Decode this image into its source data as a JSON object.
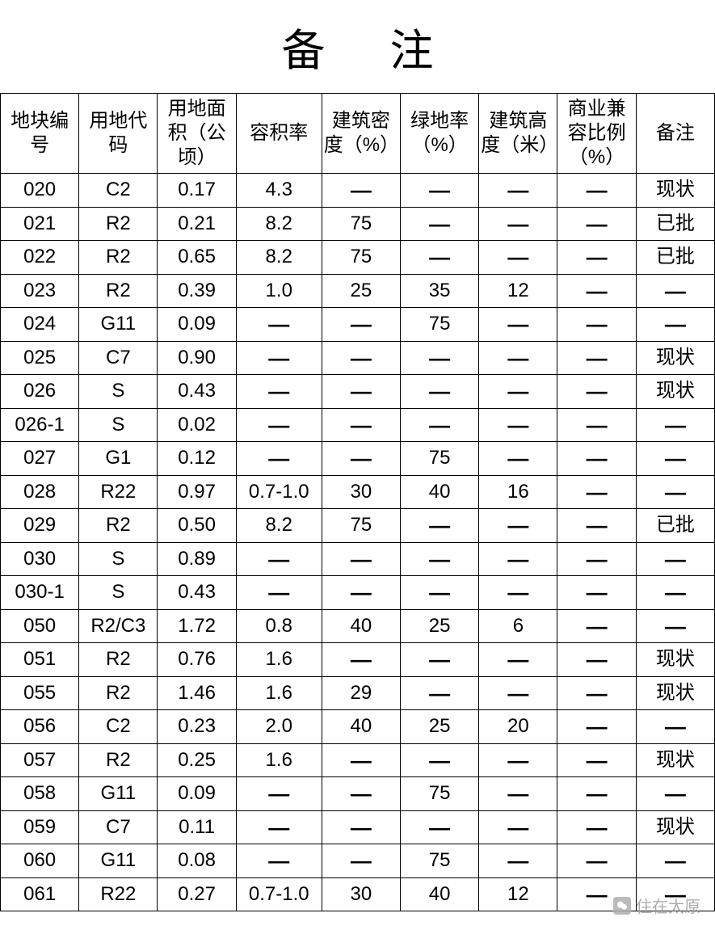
{
  "title": "备注",
  "table": {
    "type": "table",
    "dash": "—",
    "border_color": "#000000",
    "background_color": "#ffffff",
    "text_color": "#000000",
    "header_fontsize": 24,
    "cell_fontsize": 24,
    "title_fontsize": 54,
    "columns": [
      {
        "label": "地块编号",
        "width_pct": 11
      },
      {
        "label": "用地代码",
        "width_pct": 11
      },
      {
        "label": "用地面积（公顷）",
        "width_pct": 11
      },
      {
        "label": "容积率",
        "width_pct": 12
      },
      {
        "label": "建筑密度（%）",
        "width_pct": 11
      },
      {
        "label": "绿地率（%）",
        "width_pct": 11
      },
      {
        "label": "建筑高度（米）",
        "width_pct": 11
      },
      {
        "label": "商业兼容比例（%）",
        "width_pct": 11
      },
      {
        "label": "备注",
        "width_pct": 11
      }
    ],
    "rows": [
      [
        "020",
        "C2",
        "0.17",
        "4.3",
        "—",
        "—",
        "—",
        "—",
        "现状"
      ],
      [
        "021",
        "R2",
        "0.21",
        "8.2",
        "75",
        "—",
        "—",
        "—",
        "已批"
      ],
      [
        "022",
        "R2",
        "0.65",
        "8.2",
        "75",
        "—",
        "—",
        "—",
        "已批"
      ],
      [
        "023",
        "R2",
        "0.39",
        "1.0",
        "25",
        "35",
        "12",
        "—",
        "—"
      ],
      [
        "024",
        "G11",
        "0.09",
        "—",
        "—",
        "75",
        "—",
        "—",
        "—"
      ],
      [
        "025",
        "C7",
        "0.90",
        "—",
        "—",
        "—",
        "—",
        "—",
        "现状"
      ],
      [
        "026",
        "S",
        "0.43",
        "—",
        "—",
        "—",
        "—",
        "—",
        "现状"
      ],
      [
        "026-1",
        "S",
        "0.02",
        "—",
        "—",
        "—",
        "—",
        "—",
        "—"
      ],
      [
        "027",
        "G1",
        "0.12",
        "—",
        "—",
        "75",
        "—",
        "—",
        "—"
      ],
      [
        "028",
        "R22",
        "0.97",
        "0.7-1.0",
        "30",
        "40",
        "16",
        "—",
        "—"
      ],
      [
        "029",
        "R2",
        "0.50",
        "8.2",
        "75",
        "—",
        "—",
        "—",
        "已批"
      ],
      [
        "030",
        "S",
        "0.89",
        "—",
        "—",
        "—",
        "—",
        "—",
        "—"
      ],
      [
        "030-1",
        "S",
        "0.43",
        "—",
        "—",
        "—",
        "—",
        "—",
        "—"
      ],
      [
        "050",
        "R2/C3",
        "1.72",
        "0.8",
        "40",
        "25",
        "6",
        "—",
        "—"
      ],
      [
        "051",
        "R2",
        "0.76",
        "1.6",
        "—",
        "—",
        "—",
        "—",
        "现状"
      ],
      [
        "055",
        "R2",
        "1.46",
        "1.6",
        "29",
        "—",
        "—",
        "—",
        "现状"
      ],
      [
        "056",
        "C2",
        "0.23",
        "2.0",
        "40",
        "25",
        "20",
        "—",
        "—"
      ],
      [
        "057",
        "R2",
        "0.25",
        "1.6",
        "—",
        "—",
        "—",
        "—",
        "现状"
      ],
      [
        "058",
        "G11",
        "0.09",
        "—",
        "—",
        "75",
        "—",
        "—",
        "—"
      ],
      [
        "059",
        "C7",
        "0.11",
        "—",
        "—",
        "—",
        "—",
        "—",
        "现状"
      ],
      [
        "060",
        "G11",
        "0.08",
        "—",
        "—",
        "75",
        "—",
        "—",
        "—"
      ],
      [
        "061",
        "R22",
        "0.27",
        "0.7-1.0",
        "30",
        "40",
        "12",
        "—",
        "—"
      ]
    ]
  },
  "watermark": {
    "text": "住在太原",
    "color": "#9e9e9e",
    "icon_bg": "#b0b0b0"
  }
}
